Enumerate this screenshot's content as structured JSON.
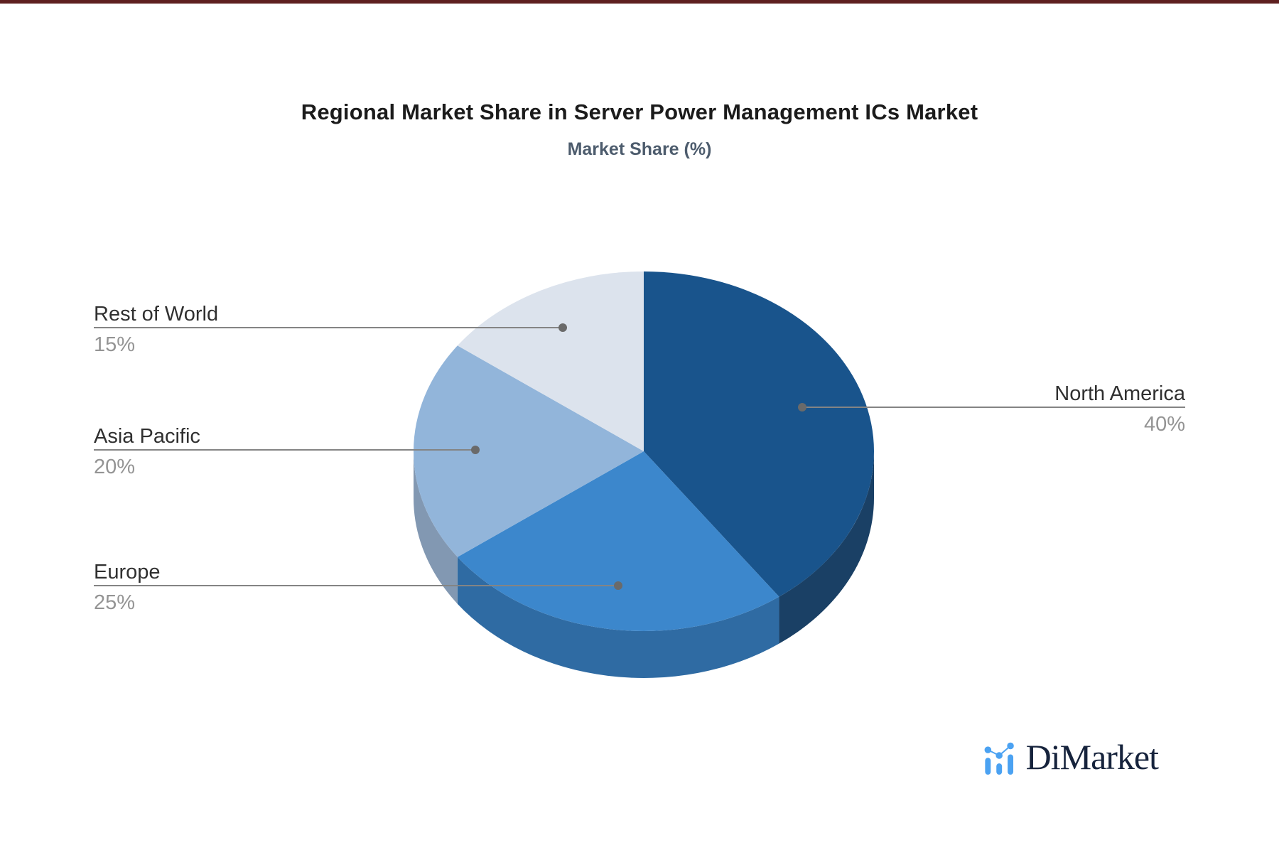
{
  "page": {
    "title": "Regional Market Share in Server Power Management ICs Market",
    "subtitle": "Market Share (%)",
    "brand": {
      "name": "DiMarket"
    }
  },
  "colors": {
    "top_bar": "#5E2020",
    "title": "#1B1B1B",
    "subtitle": "#4D5C6D",
    "label_name": "#303030",
    "label_value": "#949494",
    "leader_line": "#848484",
    "leader_dot": "#6A6A6A",
    "brand_text": "#16233C",
    "brand_icon": "#4BA2F2"
  },
  "chart_data": {
    "type": "pie",
    "style": "3d",
    "title": "Regional Market Share in Server Power Management ICs Market",
    "subtitle": "Market Share (%)",
    "unit": "%",
    "start_angle_deg": 0,
    "direction": "clockwise",
    "labels": [
      "North America",
      "Europe",
      "Asia Pacific",
      "Rest of World"
    ],
    "values": [
      40,
      25,
      20,
      15
    ],
    "display_values": [
      "40%",
      "25%",
      "20%",
      "15%"
    ],
    "slice_colors": [
      "#19548C",
      "#3C87CC",
      "#92B5DA",
      "#DCE3ED"
    ],
    "side_colors": [
      "#1A4065",
      "#2F6BA3",
      "#8298B2",
      "#C9D2E0"
    ],
    "legend": "none"
  }
}
